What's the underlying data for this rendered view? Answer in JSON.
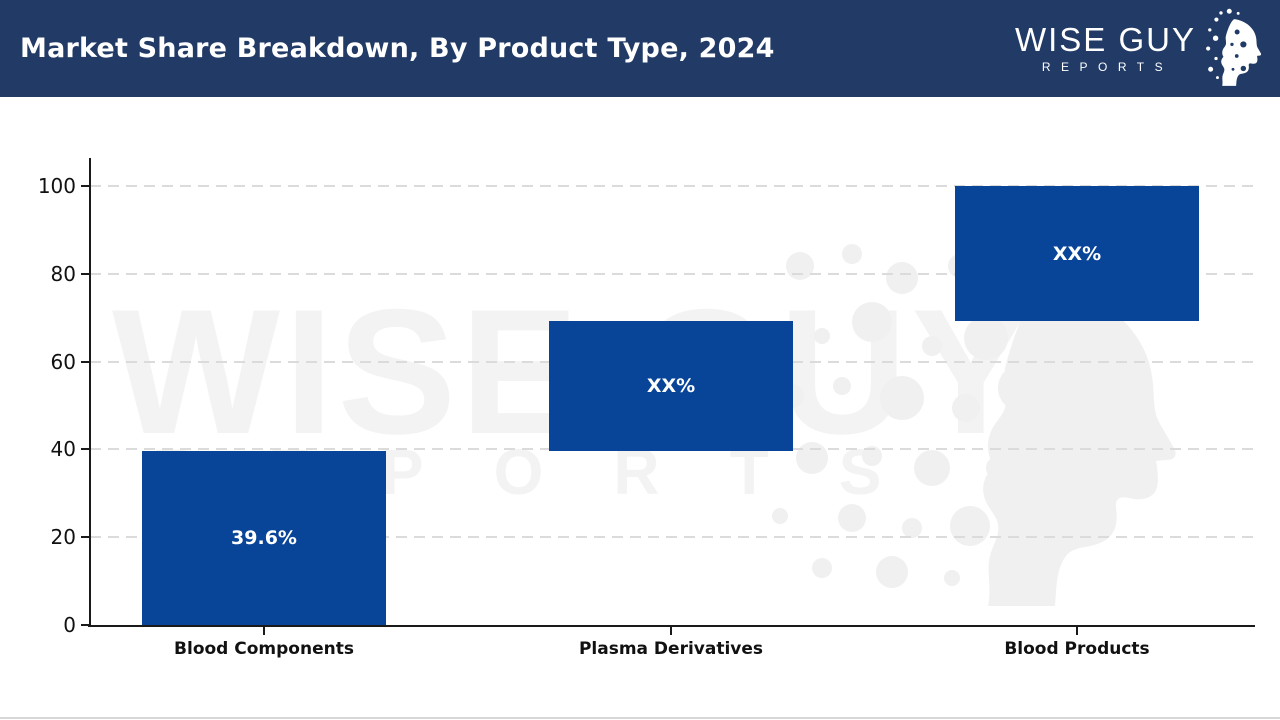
{
  "header": {
    "title": "Market Share Breakdown, By Product Type, 2024",
    "background_color": "#213A66",
    "logo": {
      "line1": "WISE GUY",
      "line2": "REPORTS"
    }
  },
  "watermark": {
    "line1": "WISE GUY",
    "line2": "REPORTS"
  },
  "chart_data": {
    "type": "bar",
    "subtype": "floating-waterfall",
    "title": "Market Share Breakdown, By Product Type, 2024",
    "categories": [
      "Blood Components",
      "Plasma Derivatives",
      "Blood Products"
    ],
    "segments": [
      {
        "category": "Blood Components",
        "start": 0,
        "end": 39.6,
        "label": "39.6%"
      },
      {
        "category": "Plasma Derivatives",
        "start": 39.6,
        "end": 69.2,
        "label": "XX%"
      },
      {
        "category": "Blood Products",
        "start": 69.2,
        "end": 100,
        "label": "XX%"
      }
    ],
    "yticks": [
      0,
      20,
      40,
      60,
      80,
      100
    ],
    "ylim": [
      0,
      106
    ],
    "xlabel": "",
    "ylabel": "",
    "bar_color": "#084497",
    "grid": true,
    "grid_style": "dashed",
    "legend": false
  }
}
